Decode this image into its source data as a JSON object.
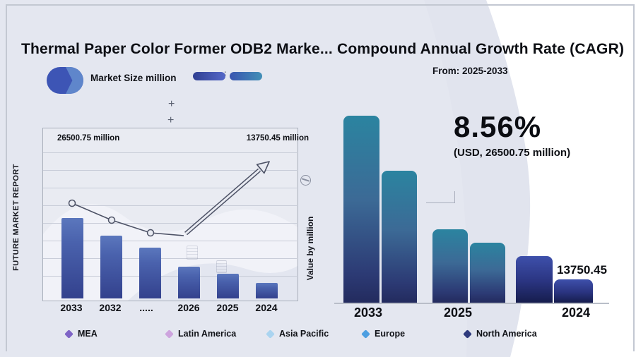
{
  "header": {
    "title": "Thermal Paper Color Former ODB2 Marke... Compound Annual Growth Rate (CAGR)",
    "period_label": "From: 2025-2033"
  },
  "toolbar": {
    "market_size_label": "Market Size million",
    "ratio_separator": ":"
  },
  "kpi": {
    "cagr_value": "8.56%",
    "cagr_basis": "(USD, 26500.75 million)"
  },
  "left_chart": {
    "start_value_label": "26500.75 million",
    "end_value_label": "13750.45 million",
    "left_axis_label": "FUTURE MARKET REPORT",
    "right_axis_label": "Value by million"
  },
  "right_chart": {
    "end_value_label": "13750.45"
  },
  "legend": {
    "items": [
      {
        "label": "MEA",
        "color": "#7e64c6"
      },
      {
        "label": "Latin America",
        "color": "#cda4de"
      },
      {
        "label": "Asia Pacific",
        "color": "#aad4f0"
      },
      {
        "label": "Europe",
        "color": "#4d9fe1"
      },
      {
        "label": "North America",
        "color": "#2e3a7d"
      }
    ]
  },
  "chart_data": [
    {
      "id": "market-size-trend",
      "type": "bar",
      "title": "Market Size million",
      "ylabel": "Value by million",
      "categories": [
        "2033",
        "2032",
        ".....",
        "2026",
        "2025",
        "2024"
      ],
      "values_estimated_million": [
        26500.75,
        20700,
        16700,
        10450,
        8150,
        5100
      ],
      "labeled_points": [
        {
          "label": "26500.75 million",
          "position": "top-left"
        },
        {
          "label": "13750.45 million",
          "position": "top-right"
        }
      ],
      "grid": true,
      "annotations": [
        "declining trend line with circle markers over first three bars",
        "hollow arrow rising to top-right"
      ]
    },
    {
      "id": "cagr-grouped-bars",
      "type": "bar",
      "categories": [
        "2033",
        "2025",
        "2024"
      ],
      "series": [
        {
          "name": "period-start",
          "values_estimated": [
            26500,
            10400,
            6600
          ]
        },
        {
          "name": "period-end",
          "values_estimated": [
            18700,
            8500,
            3300
          ]
        }
      ],
      "labeled_values": {
        "2024": 13750.45
      },
      "cagr": "8.56%",
      "basis": "(USD, 26500.75 million)",
      "grid": false,
      "legend_position": "bottom",
      "legend_entries": [
        "MEA",
        "Latin America",
        "Asia Pacific",
        "Europe",
        "North America"
      ]
    }
  ]
}
